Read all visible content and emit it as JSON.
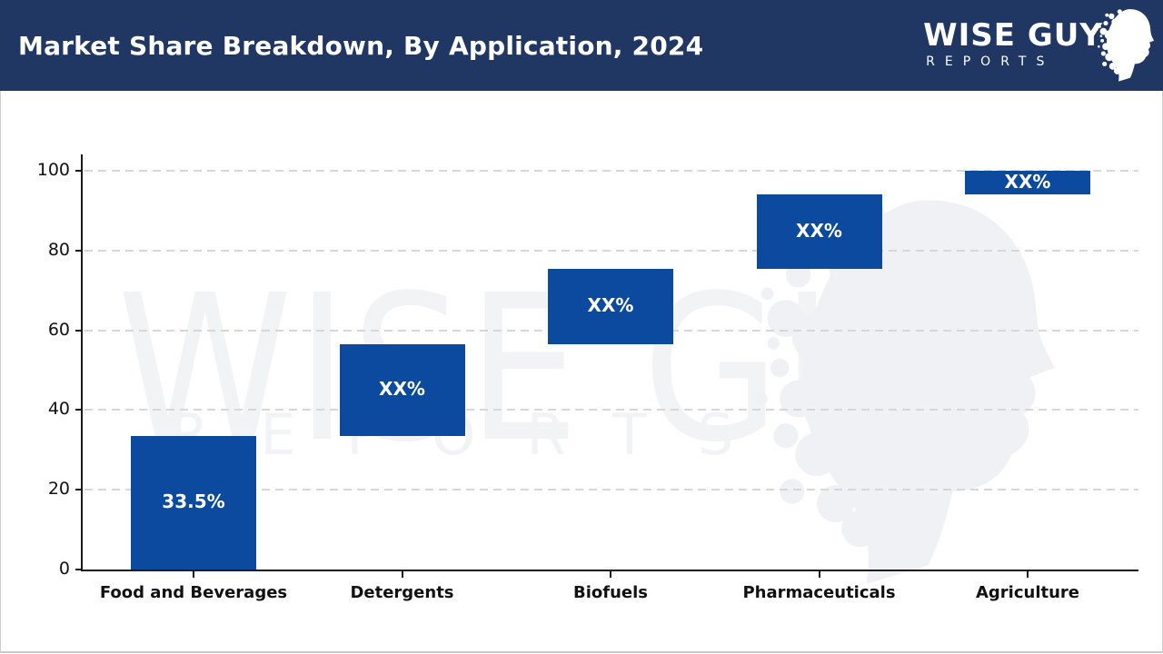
{
  "page": {
    "colors": {
      "header_bg": "#203764",
      "bar_blue": "#0b4a9e",
      "grid": "#d7d7d7",
      "axis": "#1a1a1a",
      "watermark": "#f2f3f5",
      "border": "#c9c9c9"
    }
  },
  "header": {
    "title": "Market Share Breakdown, By Application, 2024",
    "logo": {
      "name": "WISE GUY",
      "sub": "REPORTS"
    }
  },
  "watermark": {
    "big": "WISE GUY",
    "sub": "REPORTS"
  },
  "chart_data": {
    "type": "bar",
    "subtype": "waterfall",
    "title": "Market Share Breakdown, By Application, 2024",
    "categories": [
      "Food and Beverages",
      "Detergents",
      "Biofuels",
      "Pharmaceuticals",
      "Agriculture"
    ],
    "segments": [
      {
        "category": "Food and Beverages",
        "start": 0,
        "end": 33.5,
        "label": "33.5%"
      },
      {
        "category": "Detergents",
        "start": 33.5,
        "end": 56.5,
        "label": "XX%"
      },
      {
        "category": "Biofuels",
        "start": 56.5,
        "end": 75.5,
        "label": "XX%"
      },
      {
        "category": "Pharmaceuticals",
        "start": 75.5,
        "end": 94,
        "label": "XX%"
      },
      {
        "category": "Agriculture",
        "start": 94,
        "end": 100,
        "label": "XX%"
      }
    ],
    "xlabel": "",
    "ylabel": "",
    "ylim": [
      0,
      105
    ],
    "yticks": [
      0,
      20,
      40,
      60,
      80,
      100
    ],
    "grid": "horizontal-dashed",
    "legend": "none",
    "bar_color": "#0b4a9e",
    "bar_label_color": "#ffffff"
  }
}
